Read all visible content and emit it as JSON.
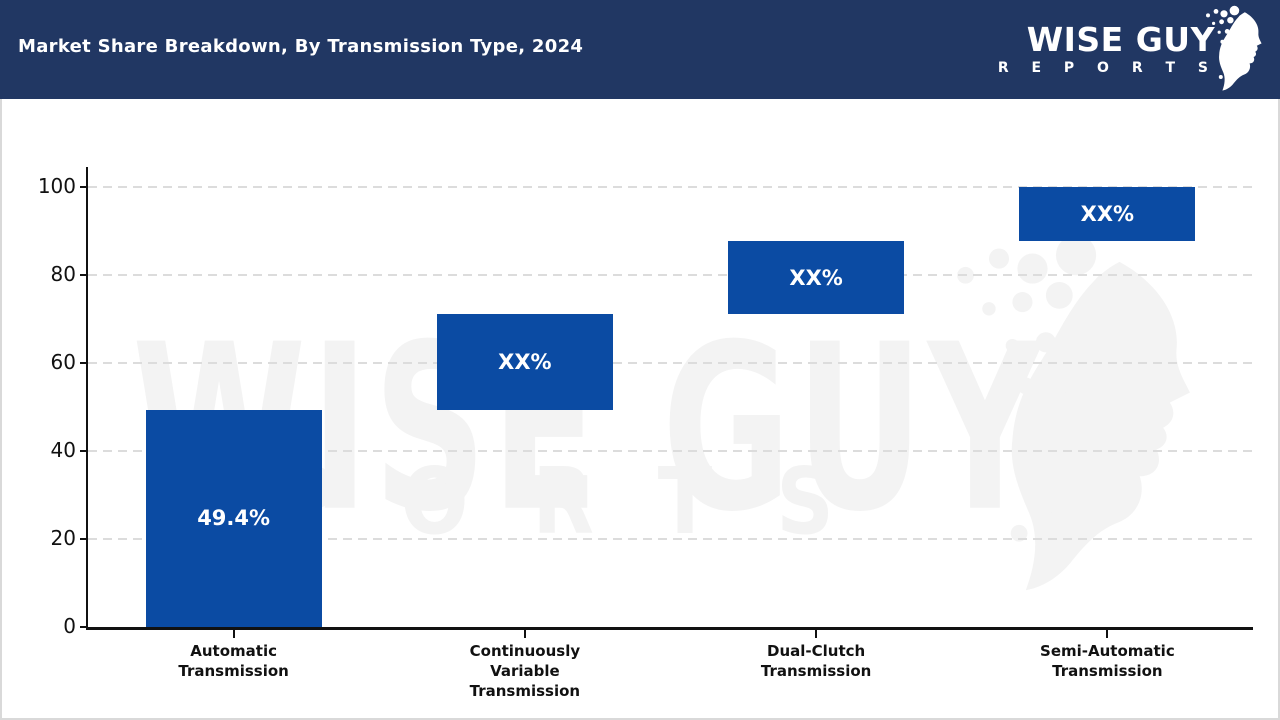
{
  "header": {
    "title": "Market Share Breakdown, By Transmission Type, 2024",
    "logo_line1": "WISE GUY",
    "logo_line2": "R E P O R T S"
  },
  "watermark": {
    "line1": "WISE GUY",
    "line2": "P O R T S"
  },
  "chart_data": {
    "type": "bar",
    "variant": "floating-waterfall",
    "title": "Market Share Breakdown, By Transmission Type, 2024",
    "categories": [
      "Automatic\nTransmission",
      "Continuously\nVariable\nTransmission",
      "Dual-Clutch\nTransmission",
      "Semi-Automatic\nTransmission"
    ],
    "segments": [
      {
        "category": "Automatic Transmission",
        "start": 0,
        "end": 49.4,
        "label": "49.4%"
      },
      {
        "category": "Continuously Variable Transmission",
        "start": 49.4,
        "end": 71.1,
        "label": "XX%"
      },
      {
        "category": "Dual-Clutch Transmission",
        "start": 71.1,
        "end": 87.7,
        "label": "XX%"
      },
      {
        "category": "Semi-Automatic Transmission",
        "start": 87.7,
        "end": 100,
        "label": "XX%"
      }
    ],
    "ylim": [
      0,
      105
    ],
    "yticks": [
      0,
      20,
      40,
      60,
      80,
      100
    ],
    "xlabel": "",
    "ylabel": "",
    "grid": {
      "axis": "y",
      "style": "dashed"
    },
    "legend": "none"
  },
  "colors": {
    "header_bg": "#213763",
    "header_text": "#ffffff",
    "bar": "#0B4BA3",
    "bar_label": "#ffffff",
    "axis": "#111111",
    "grid": "#dcdcdc",
    "border": "#d9d9d9",
    "watermark": "#f3f3f3"
  }
}
